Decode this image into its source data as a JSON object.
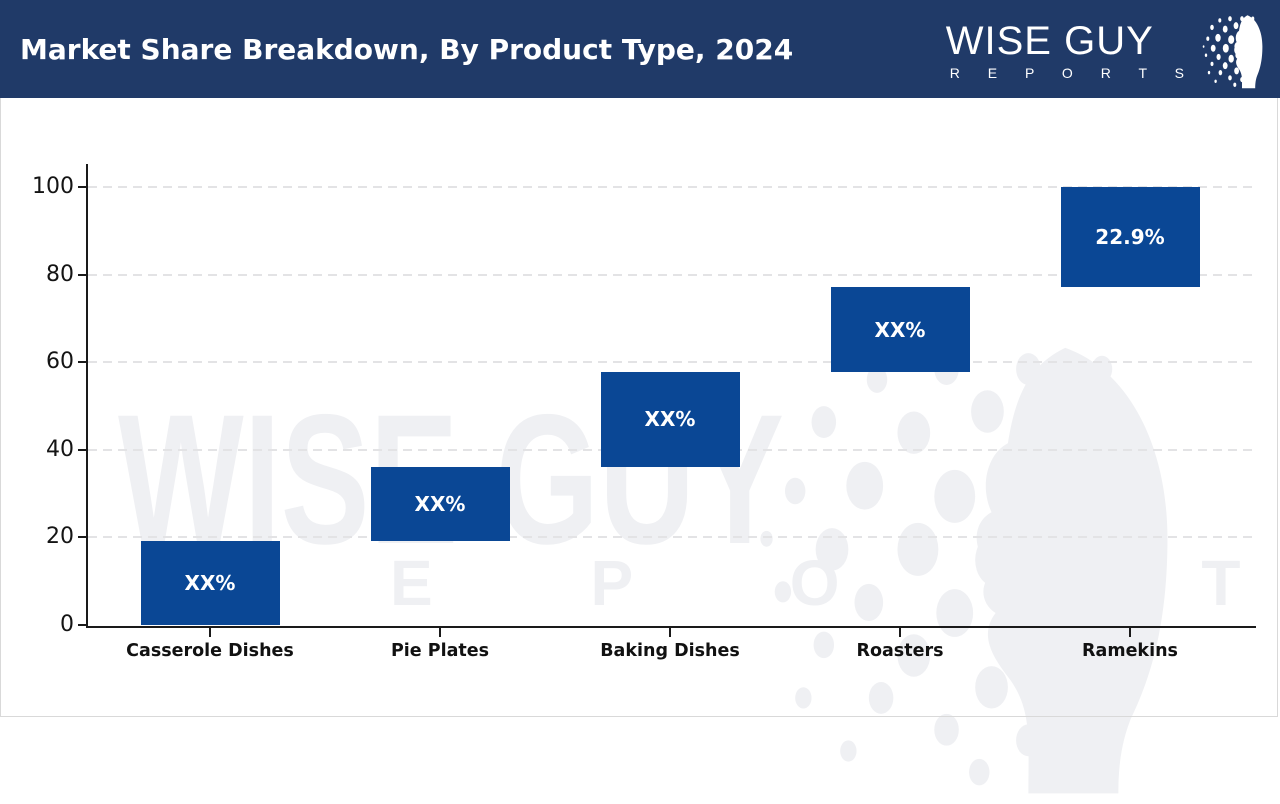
{
  "header": {
    "title": "Market Share Breakdown, By Product Type, 2024",
    "logo": {
      "line1": "WISE GUY",
      "line2": "R E P O R T S"
    }
  },
  "watermark": {
    "line1": "WISE GUY",
    "line2": "R E P O R T S"
  },
  "chart_data": {
    "type": "bar",
    "subtype": "waterfall",
    "title": "Market Share Breakdown, By Product Type, 2024",
    "categories": [
      "Casserole Dishes",
      "Pie Plates",
      "Baking Dishes",
      "Roasters",
      "Ramekins"
    ],
    "segments": [
      {
        "category": "Casserole Dishes",
        "start": 0,
        "end": 19.2,
        "label": "XX%"
      },
      {
        "category": "Pie Plates",
        "start": 19.2,
        "end": 36.1,
        "label": "XX%"
      },
      {
        "category": "Baking Dishes",
        "start": 36.1,
        "end": 57.8,
        "label": "XX%"
      },
      {
        "category": "Roasters",
        "start": 57.8,
        "end": 77.1,
        "label": "XX%"
      },
      {
        "category": "Ramekins",
        "start": 77.1,
        "end": 100,
        "label": "22.9%"
      }
    ],
    "yticks": [
      0,
      20,
      40,
      60,
      80,
      100
    ],
    "ylim": [
      0,
      105
    ],
    "xlabel": "",
    "ylabel": "",
    "grid": "dashed-horizontal",
    "legend": "none"
  },
  "colors": {
    "header_bg": "#203a68",
    "bar": "#0a4795",
    "bar_label": "#ffffff",
    "grid": "#e3e3e5",
    "axis": "#1a1a1a",
    "watermark": "#eff0f3",
    "frame": "#d9d9d9"
  }
}
